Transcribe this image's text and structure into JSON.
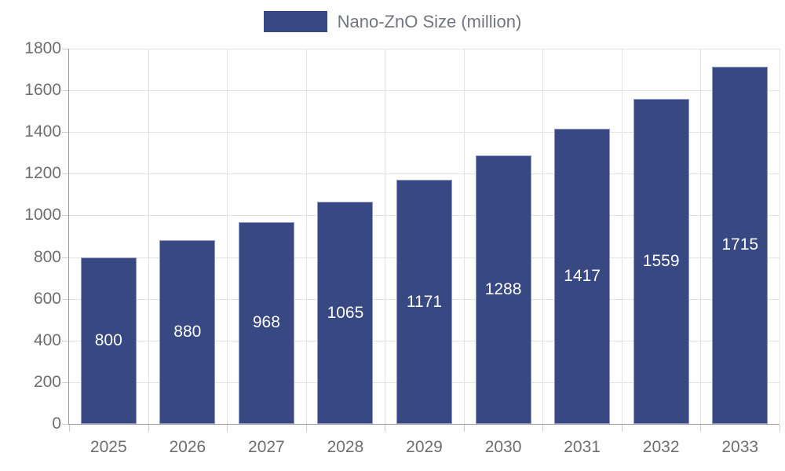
{
  "legend": {
    "label": "Nano-ZnO Size (million)"
  },
  "chart_data": {
    "type": "bar",
    "title": "",
    "categories": [
      "2025",
      "2026",
      "2027",
      "2028",
      "2029",
      "2030",
      "2031",
      "2032",
      "2033"
    ],
    "series": [
      {
        "name": "Nano-ZnO Size (million)",
        "values": [
          800,
          880,
          968,
          1065,
          1171,
          1288,
          1417,
          1559,
          1715
        ]
      }
    ],
    "value_labels": [
      "800",
      "880",
      "968",
      "1065",
      "1171",
      "1288",
      "1417",
      "1559",
      "1715"
    ],
    "ytick_labels": [
      "0",
      "200",
      "400",
      "600",
      "800",
      "1000",
      "1200",
      "1400",
      "1600",
      "1800"
    ],
    "xlabel": "",
    "ylabel": "",
    "ylim": [
      0,
      1800
    ],
    "ytick_step": 200,
    "grid": true,
    "legend_position": "top",
    "colors": {
      "bar_fill": "#374882",
      "bar_border": "#9298c7",
      "value_label": "#ffffff",
      "axis_text": "#6e6e6e",
      "legend_text": "#71757e",
      "grid_line": "#e3e3e3",
      "axis_line": "#999999",
      "tick_line": "#c9cbd6"
    }
  }
}
